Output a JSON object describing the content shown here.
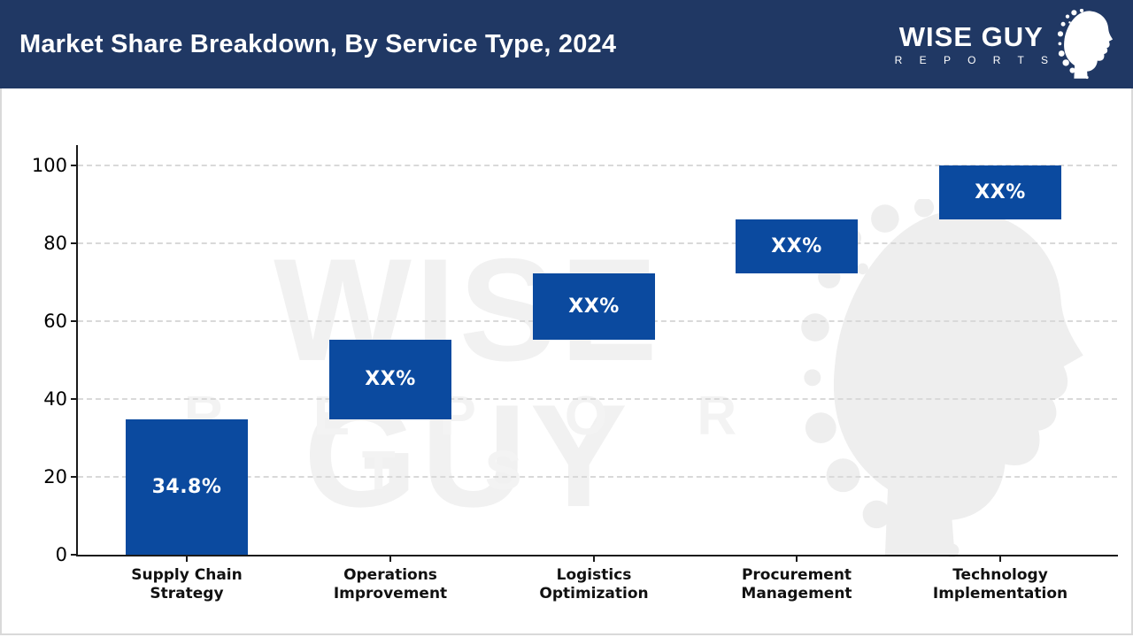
{
  "header": {
    "background": "#203864",
    "title": "Market Share Breakdown, By Service Type, 2024",
    "logo": {
      "name": "Wise Guy Reports",
      "line1": "WISE GUY",
      "line2": "R E P O R T S"
    }
  },
  "watermark": {
    "line1": "WISE GUY",
    "line2": "R E P O R T S"
  },
  "chart_data": {
    "type": "bar",
    "variant": "waterfall",
    "title": "Market Share Breakdown, By Service Type, 2024",
    "categories": [
      "Supply Chain Strategy",
      "Operations Improvement",
      "Logistics Optimization",
      "Procurement Management",
      "Technology Implementation"
    ],
    "segments": [
      {
        "category": "Supply Chain Strategy",
        "label": "34.8%",
        "start": 0,
        "end": 34.8
      },
      {
        "category": "Operations Improvement",
        "label": "XX%",
        "start": 34.8,
        "end": 55.2
      },
      {
        "category": "Logistics Optimization",
        "label": "XX%",
        "start": 55.2,
        "end": 72.3
      },
      {
        "category": "Procurement Management",
        "label": "XX%",
        "start": 72.3,
        "end": 86.2
      },
      {
        "category": "Technology Implementation",
        "label": "XX%",
        "start": 86.2,
        "end": 100
      }
    ],
    "ylim": [
      0,
      100
    ],
    "yticks": [
      0,
      20,
      40,
      60,
      80,
      100
    ],
    "grid": "horizontal-dashed",
    "legend": "none",
    "bar_color": "#0b4a9f",
    "bar_label_color": "#ffffff",
    "axis_color": "#1a1a1a",
    "grid_color": "#d9d9d9"
  }
}
